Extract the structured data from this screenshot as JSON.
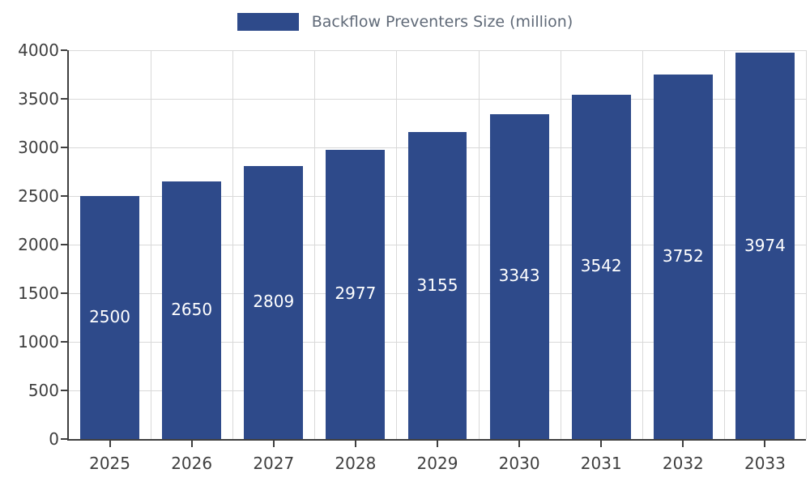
{
  "chart_data": {
    "type": "bar",
    "title": "",
    "legend": "Backflow Preventers Size (million)",
    "categories": [
      "2025",
      "2026",
      "2027",
      "2028",
      "2029",
      "2030",
      "2031",
      "2032",
      "2033"
    ],
    "values": [
      2500,
      2650,
      2809,
      2977,
      3155,
      3343,
      3542,
      3752,
      3974
    ],
    "bar_labels": [
      "2500",
      "2650",
      "2809",
      "2977",
      "3155",
      "3343",
      "3542",
      "3752",
      "3974"
    ],
    "xlabel": "",
    "ylabel": "",
    "ylim": [
      0,
      4000
    ],
    "yticks": [
      0,
      500,
      1000,
      1500,
      2000,
      2500,
      3000,
      3500,
      4000
    ],
    "grid": true,
    "legend_position": "top-center",
    "colors": {
      "bar": "#2e4a8a",
      "grid": "#d9d9d9",
      "axis": "#3f3f3f",
      "tick_label": "#3f3f3f",
      "bar_label": "#ffffff",
      "legend_text": "#606a78",
      "background": "#ffffff"
    }
  }
}
